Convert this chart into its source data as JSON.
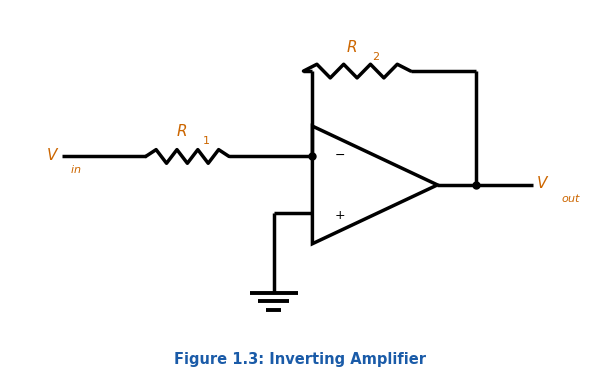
{
  "title": "Figure 1.3: Inverting Amplifier",
  "title_color": "#1a5ba8",
  "component_color": "#000000",
  "label_color": "#cc6600",
  "bg_color": "#ffffff",
  "lw": 2.5,
  "fig_width": 6.01,
  "fig_height": 3.85,
  "dpi": 100,
  "vin_label": "V",
  "vin_sub": "in",
  "vout_label": "V",
  "vout_sub": "out",
  "r1_label": "R",
  "r1_sub": "1",
  "r2_label": "R",
  "r2_sub": "2"
}
